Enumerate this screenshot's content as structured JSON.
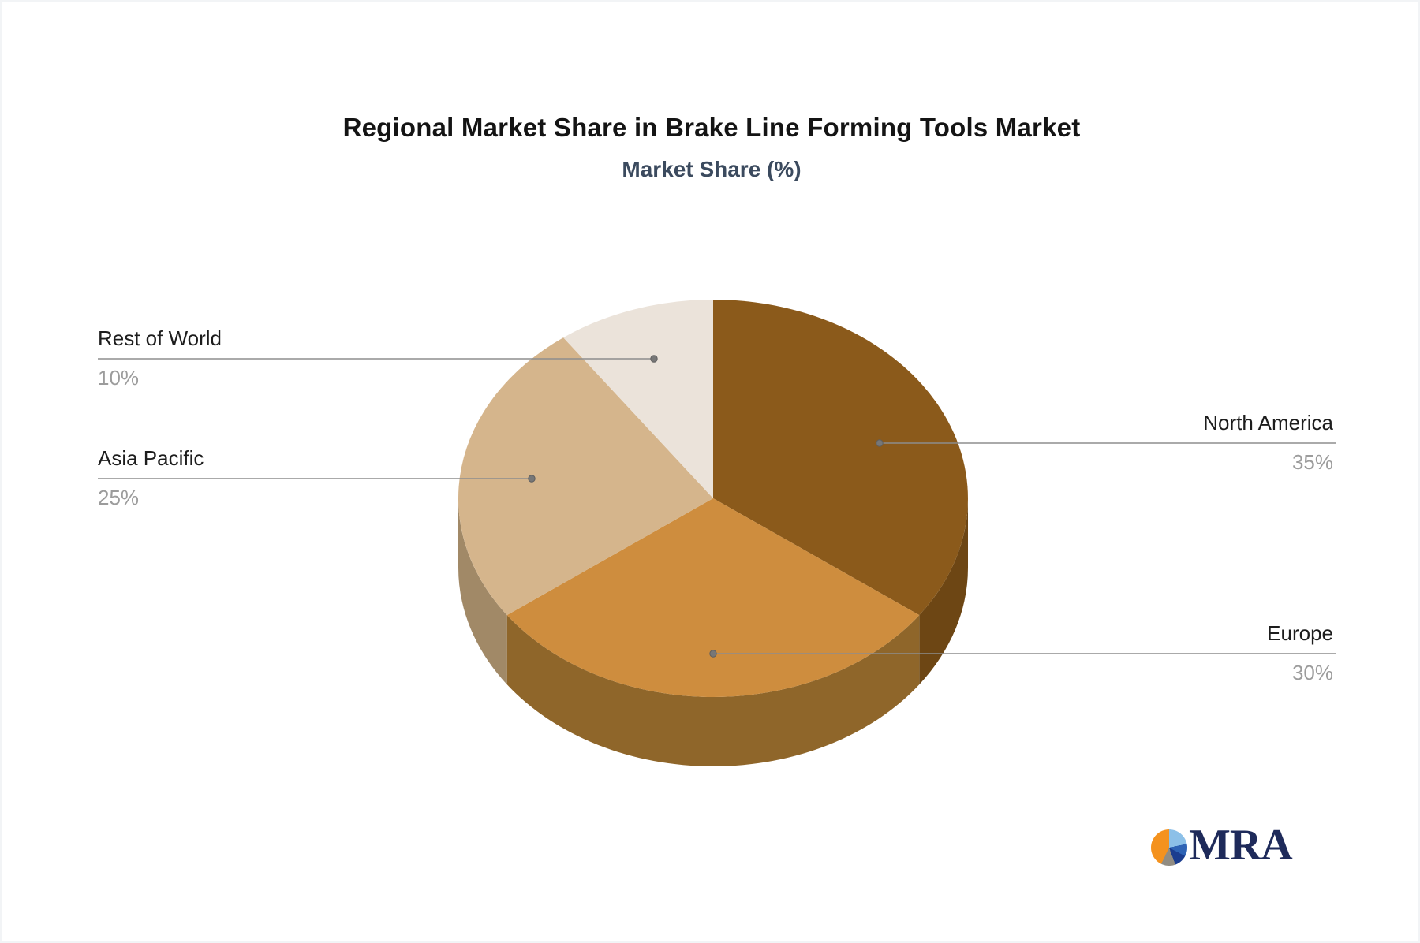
{
  "header": {
    "title": "Regional Market Share in Brake Line Forming Tools Market",
    "subtitle": "Market Share (%)"
  },
  "chart_data": {
    "type": "pie",
    "style": "3d",
    "title": "Regional Market Share in Brake Line Forming Tools Market",
    "subtitle": "Market Share (%)",
    "unit": "%",
    "start_angle_deg": 0,
    "direction": "clockwise",
    "legend_position": "none",
    "categories": [
      "North America",
      "Europe",
      "Asia Pacific",
      "Rest of World"
    ],
    "values": [
      35,
      30,
      25,
      10
    ],
    "slices": [
      {
        "label": "North America",
        "value": 35,
        "pct": "35%",
        "color": "#8B5A1B",
        "side_color": "#6D4614",
        "callout_side": "right"
      },
      {
        "label": "Europe",
        "value": 30,
        "pct": "30%",
        "color": "#CE8D3E",
        "side_color": "#8F662A",
        "callout_side": "right"
      },
      {
        "label": "Asia Pacific",
        "value": 25,
        "pct": "25%",
        "color": "#D5B58C",
        "side_color": "#A18967",
        "callout_side": "left"
      },
      {
        "label": "Rest of World",
        "value": 10,
        "pct": "10%",
        "color": "#EBE3DA",
        "side_color": "#B8A98F",
        "callout_side": "left"
      }
    ],
    "leader_line_color": "#8d8d8d",
    "label_color": "#1d1d1d",
    "pct_color": "#9c9c9c"
  },
  "logo": {
    "text": "MRA",
    "mark": "pie-logo-mark",
    "mark_colors": [
      "#f4921e",
      "#8cc0e8",
      "#2e63b5",
      "#1b3d8f",
      "#918c82"
    ],
    "text_color": "#1e2a5a"
  }
}
